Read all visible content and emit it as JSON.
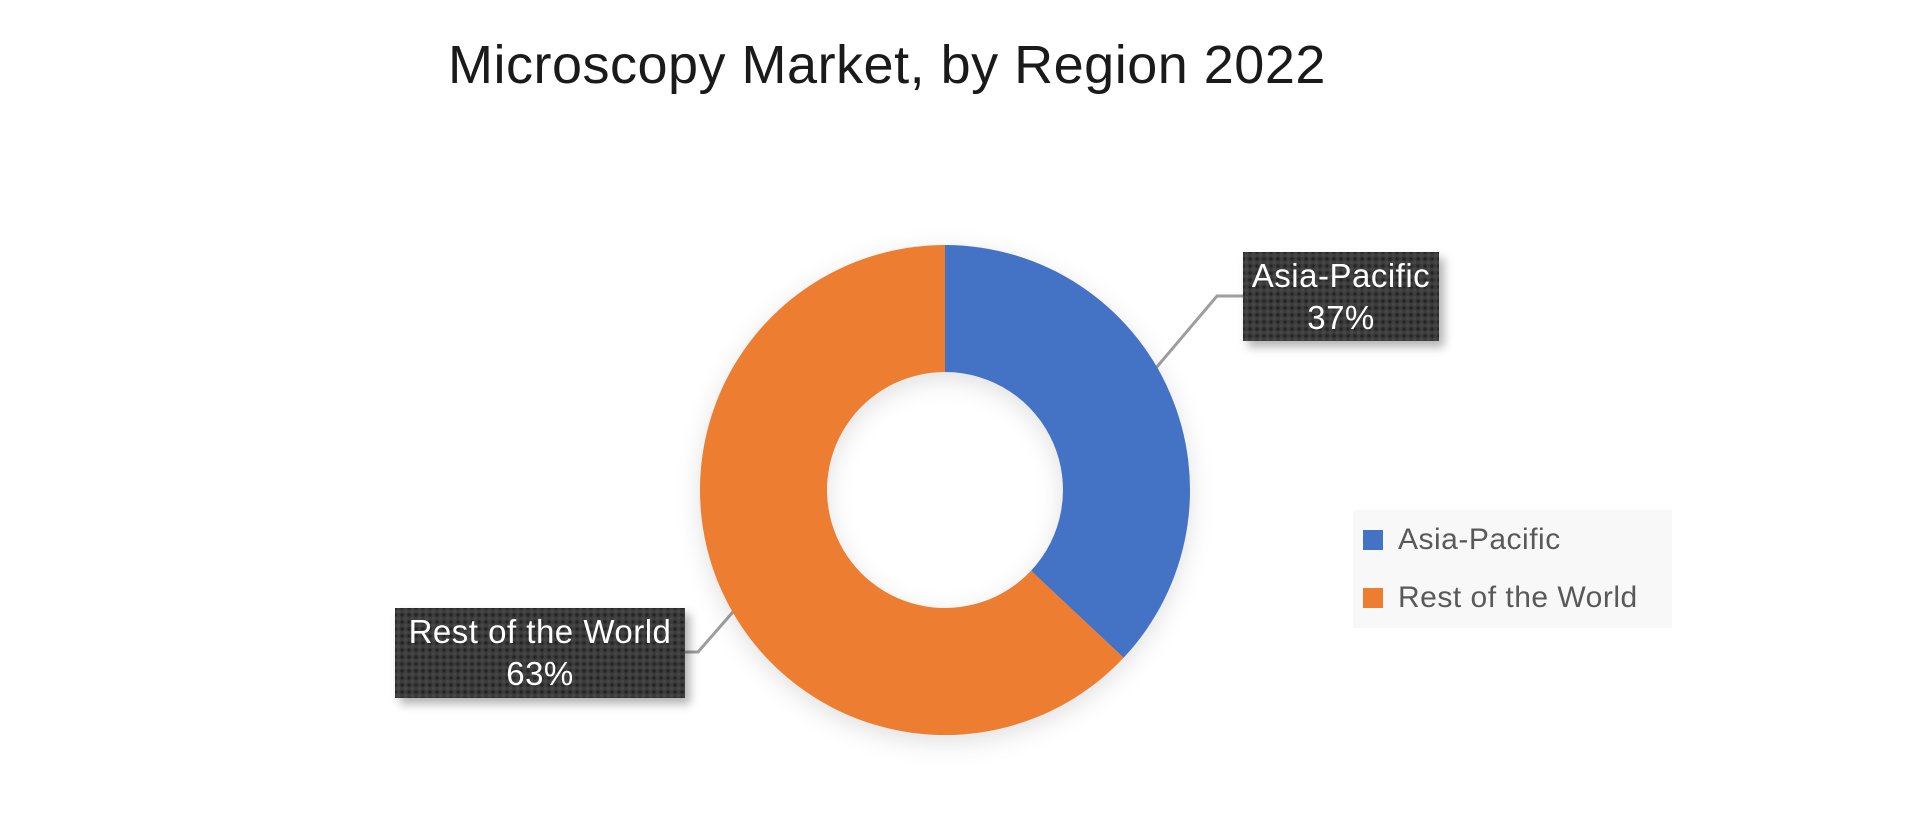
{
  "page": {
    "background": "#FFFFFF"
  },
  "chart_data": {
    "type": "pie",
    "subtype": "donut",
    "title": "Microscopy Market, by Region 2022",
    "start_angle_deg": 0,
    "direction": "clockwise",
    "inner_radius_ratio": 0.48,
    "legend_position": "right",
    "grid": false,
    "segments": [
      {
        "label": "Asia-Pacific",
        "value": 37,
        "pct_label": "37%",
        "color": "#4472C4"
      },
      {
        "label": "Rest of the World",
        "value": 63,
        "pct_label": "63%",
        "color": "#ED7D31"
      }
    ]
  },
  "colors": {
    "accent_blue": "#4472C4",
    "accent_orange": "#ED7D31",
    "callout_bg": "#3C3C3C",
    "callout_text": "#FFFFFF",
    "leader_line": "#9E9E9E",
    "legend_bg": "#F8F8F8",
    "legend_text": "#595959",
    "title_text": "#1A1A1A"
  }
}
